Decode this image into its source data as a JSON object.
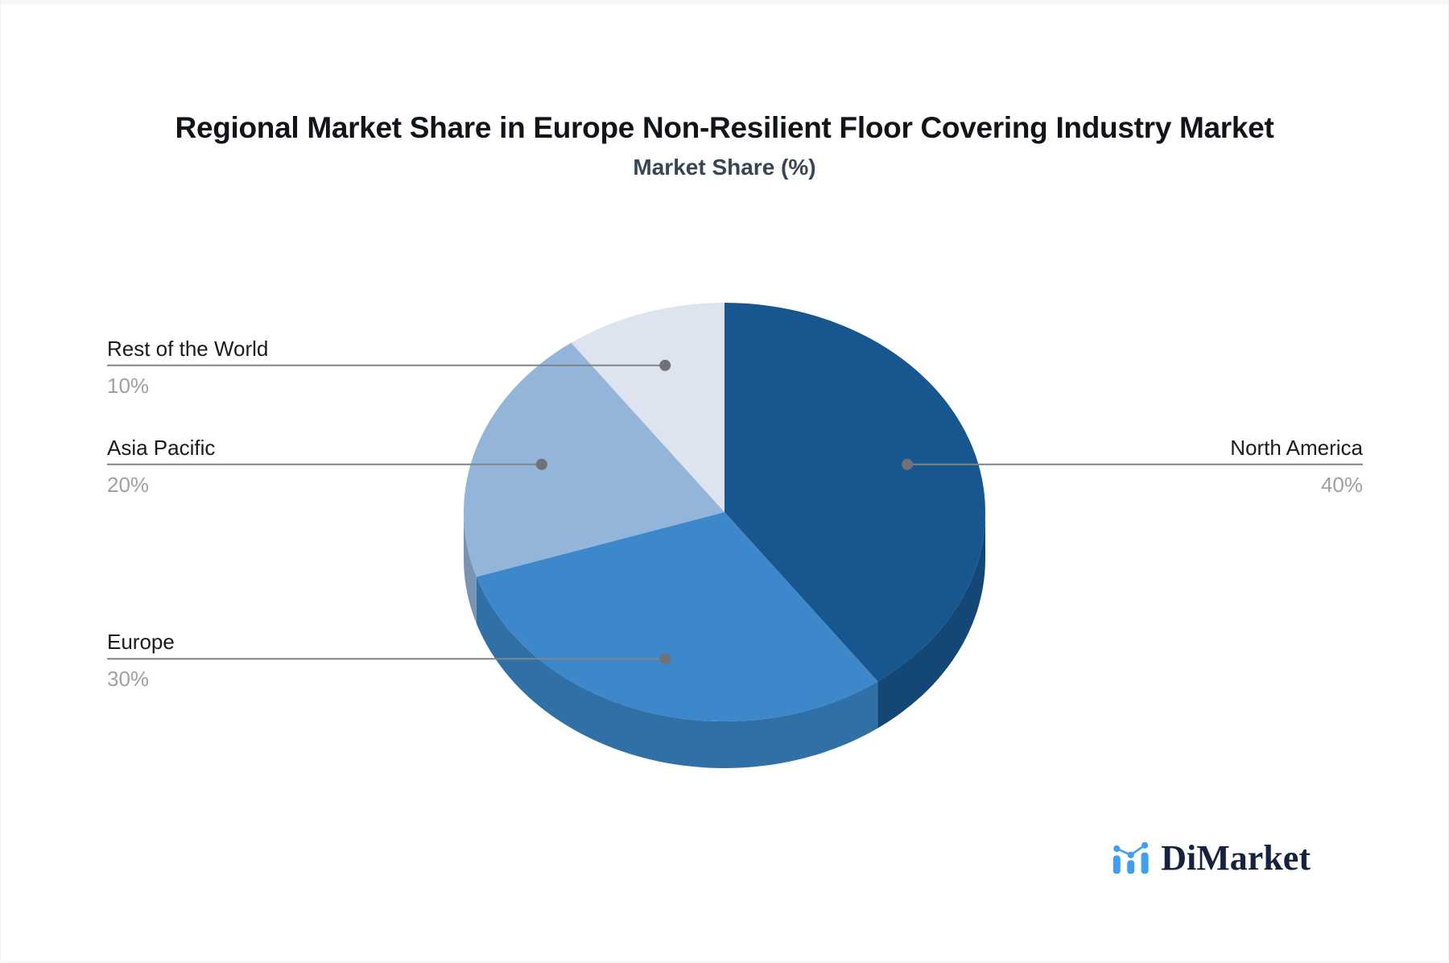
{
  "header": {
    "title": "Regional Market Share in Europe Non-Resilient Floor Covering Industry Market",
    "subtitle": "Market Share (%)"
  },
  "chart_data": {
    "type": "pie",
    "style": "3d",
    "title": "Regional Market Share in Europe Non-Resilient Floor Covering Industry Market",
    "subtitle": "Market Share (%)",
    "unit": "%",
    "start_angle_deg": 0,
    "direction": "clockwise",
    "legend_position": "none",
    "slices": [
      {
        "label": "North America",
        "value": 40,
        "display": "40%",
        "color": "#17568F",
        "side_color": "#144676"
      },
      {
        "label": "Europe",
        "value": 30,
        "display": "30%",
        "color": "#3C88CB",
        "side_color": "#3170A6"
      },
      {
        "label": "Asia Pacific",
        "value": 20,
        "display": "20%",
        "color": "#93B5DA",
        "side_color": "#7994B3"
      },
      {
        "label": "Rest of the World",
        "value": 10,
        "display": "10%",
        "color": "#DEE4EF",
        "side_color": "#B6C1D3"
      }
    ],
    "label_text_color": "#1b1b1b",
    "value_text_color": "#9ea0a4",
    "leader_line_color": "#828487",
    "leader_dot_color": "#6f7276"
  },
  "logo": {
    "name": "DiMarket",
    "icon": "bar-chart-sparkline-icon",
    "icon_color": "#3e9ff5",
    "text_color": "#17233e"
  }
}
